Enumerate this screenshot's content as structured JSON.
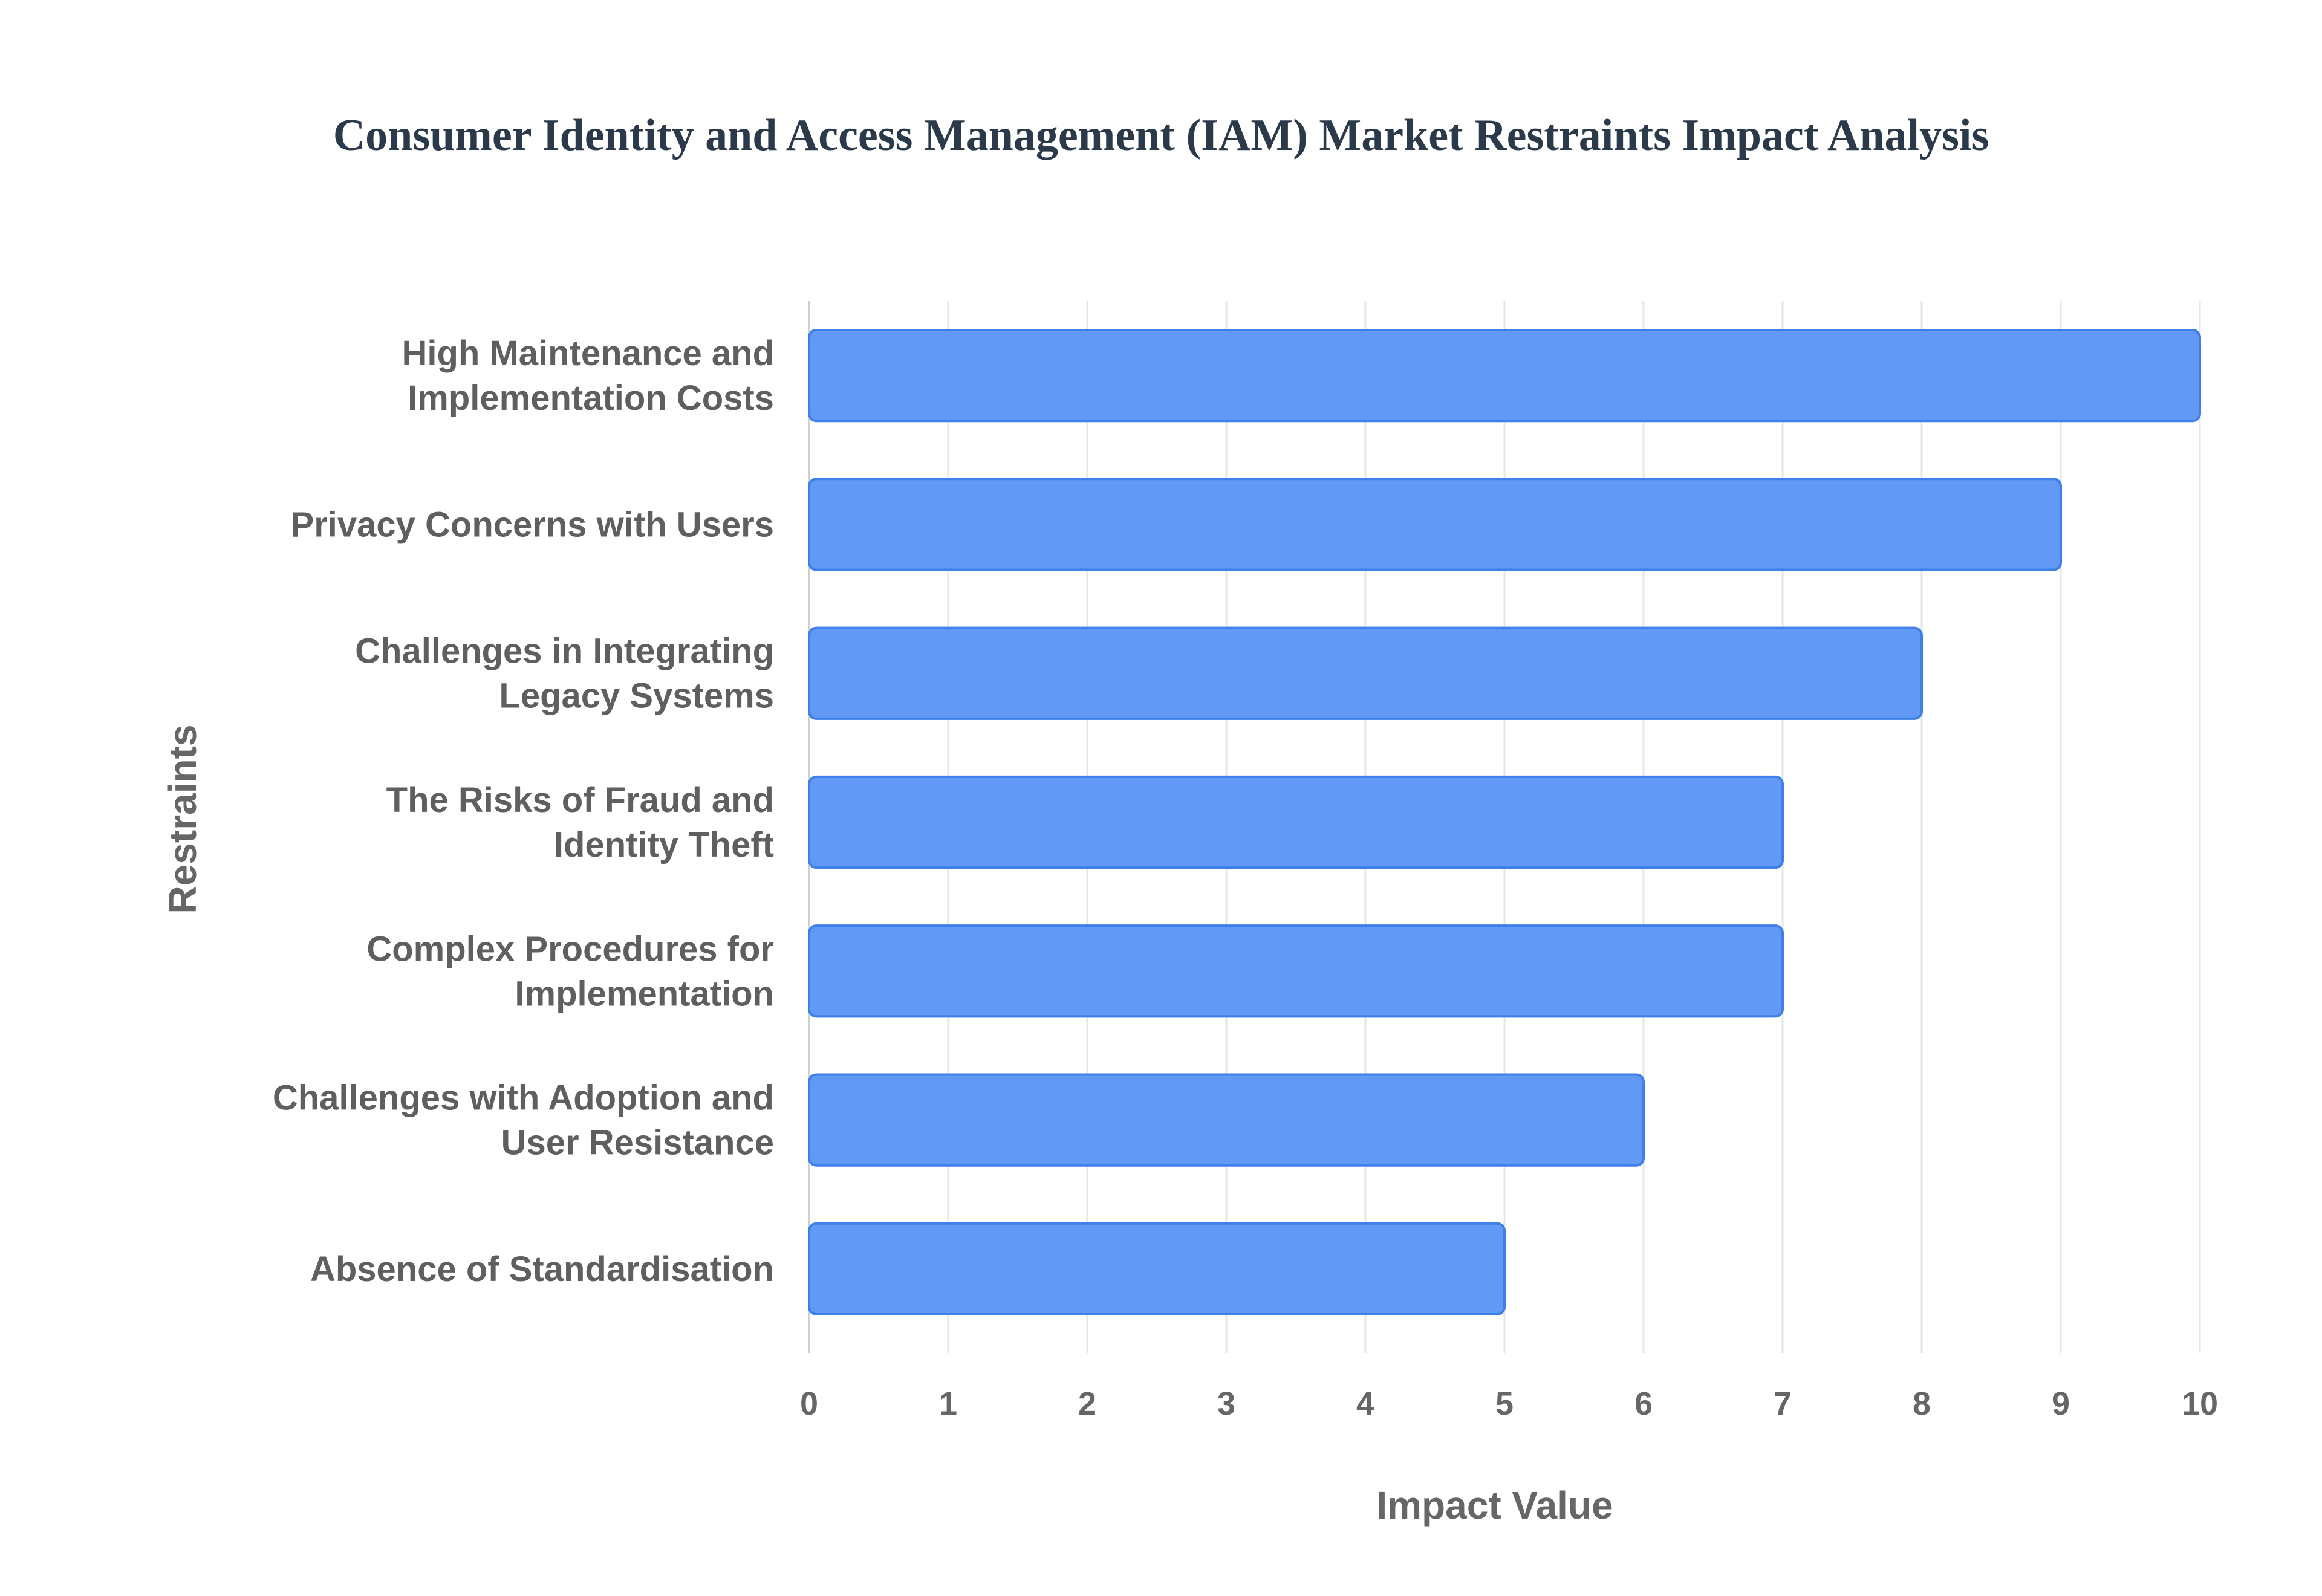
{
  "chart_data": {
    "type": "bar",
    "orientation": "horizontal",
    "title": "Consumer Identity and Access Management (IAM) Market Restraints Impact Analysis",
    "xlabel": "Impact Value",
    "ylabel": "Restraints",
    "xlim": [
      0,
      10
    ],
    "xticks": [
      "0",
      "1",
      "2",
      "3",
      "4",
      "5",
      "6",
      "7",
      "8",
      "9",
      "10"
    ],
    "grid": true,
    "bar_color": "#6199f5",
    "bar_border_color": "#3f7fe8",
    "categories": [
      [
        "High Maintenance and",
        "Implementation Costs"
      ],
      [
        "Privacy Concerns with Users"
      ],
      [
        "Challenges in Integrating",
        "Legacy Systems"
      ],
      [
        "The Risks of Fraud and",
        "Identity Theft"
      ],
      [
        "Complex Procedures for",
        "Implementation"
      ],
      [
        "Challenges with Adoption and",
        "User Resistance"
      ],
      [
        "Absence of Standardisation"
      ]
    ],
    "values": [
      10,
      9,
      8,
      7,
      7,
      6,
      5
    ]
  }
}
